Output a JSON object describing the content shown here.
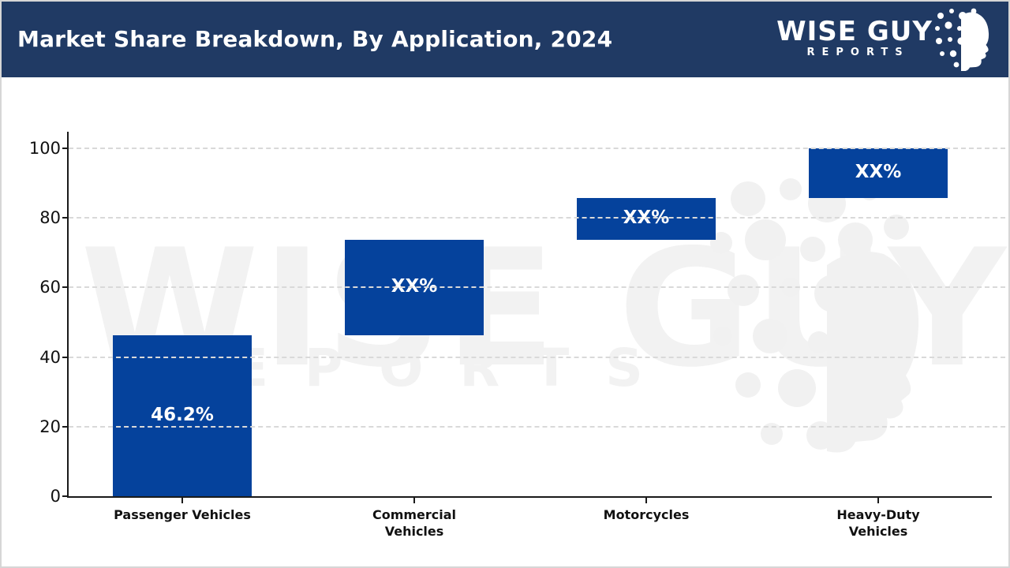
{
  "page": {
    "background": "#ffffff",
    "border_color": "#d6d6d6"
  },
  "header": {
    "bg_color": "#203a64",
    "title": "Market Share Breakdown, By Application, 2024",
    "logo": {
      "title": "WISE GUY",
      "subtitle": "REPORTS"
    }
  },
  "watermark": {
    "line1": "WISE GUY",
    "line2": "REPORTS"
  },
  "chart_data": {
    "type": "bar",
    "variant": "waterfall",
    "title": "Market Share Breakdown, By Application, 2024",
    "categories": [
      "Passenger Vehicles",
      "Commercial\nVehicles",
      "Motorcycles",
      "Heavy-Duty\nVehicles"
    ],
    "segments": [
      {
        "category": "Passenger Vehicles",
        "start": 0,
        "end": 46.2,
        "label": "46.2%"
      },
      {
        "category": "Commercial Vehicles",
        "start": 46.2,
        "end": 73.8,
        "label": "XX%"
      },
      {
        "category": "Motorcycles",
        "start": 73.8,
        "end": 85.8,
        "label": "XX%"
      },
      {
        "category": "Heavy-Duty Vehicles",
        "start": 85.8,
        "end": 100,
        "label": "XX%"
      }
    ],
    "xlabel": "",
    "ylabel": "",
    "ylim": [
      0,
      100
    ],
    "yticks": [
      0,
      20,
      40,
      60,
      80,
      100
    ],
    "grid": {
      "horizontal": true,
      "style": "dashed",
      "color": "#d9d9d9"
    },
    "legend": "none",
    "bar_color": "#05429c",
    "bar_label_color": "#ffffff",
    "axis_color": "#1a1a1a"
  }
}
